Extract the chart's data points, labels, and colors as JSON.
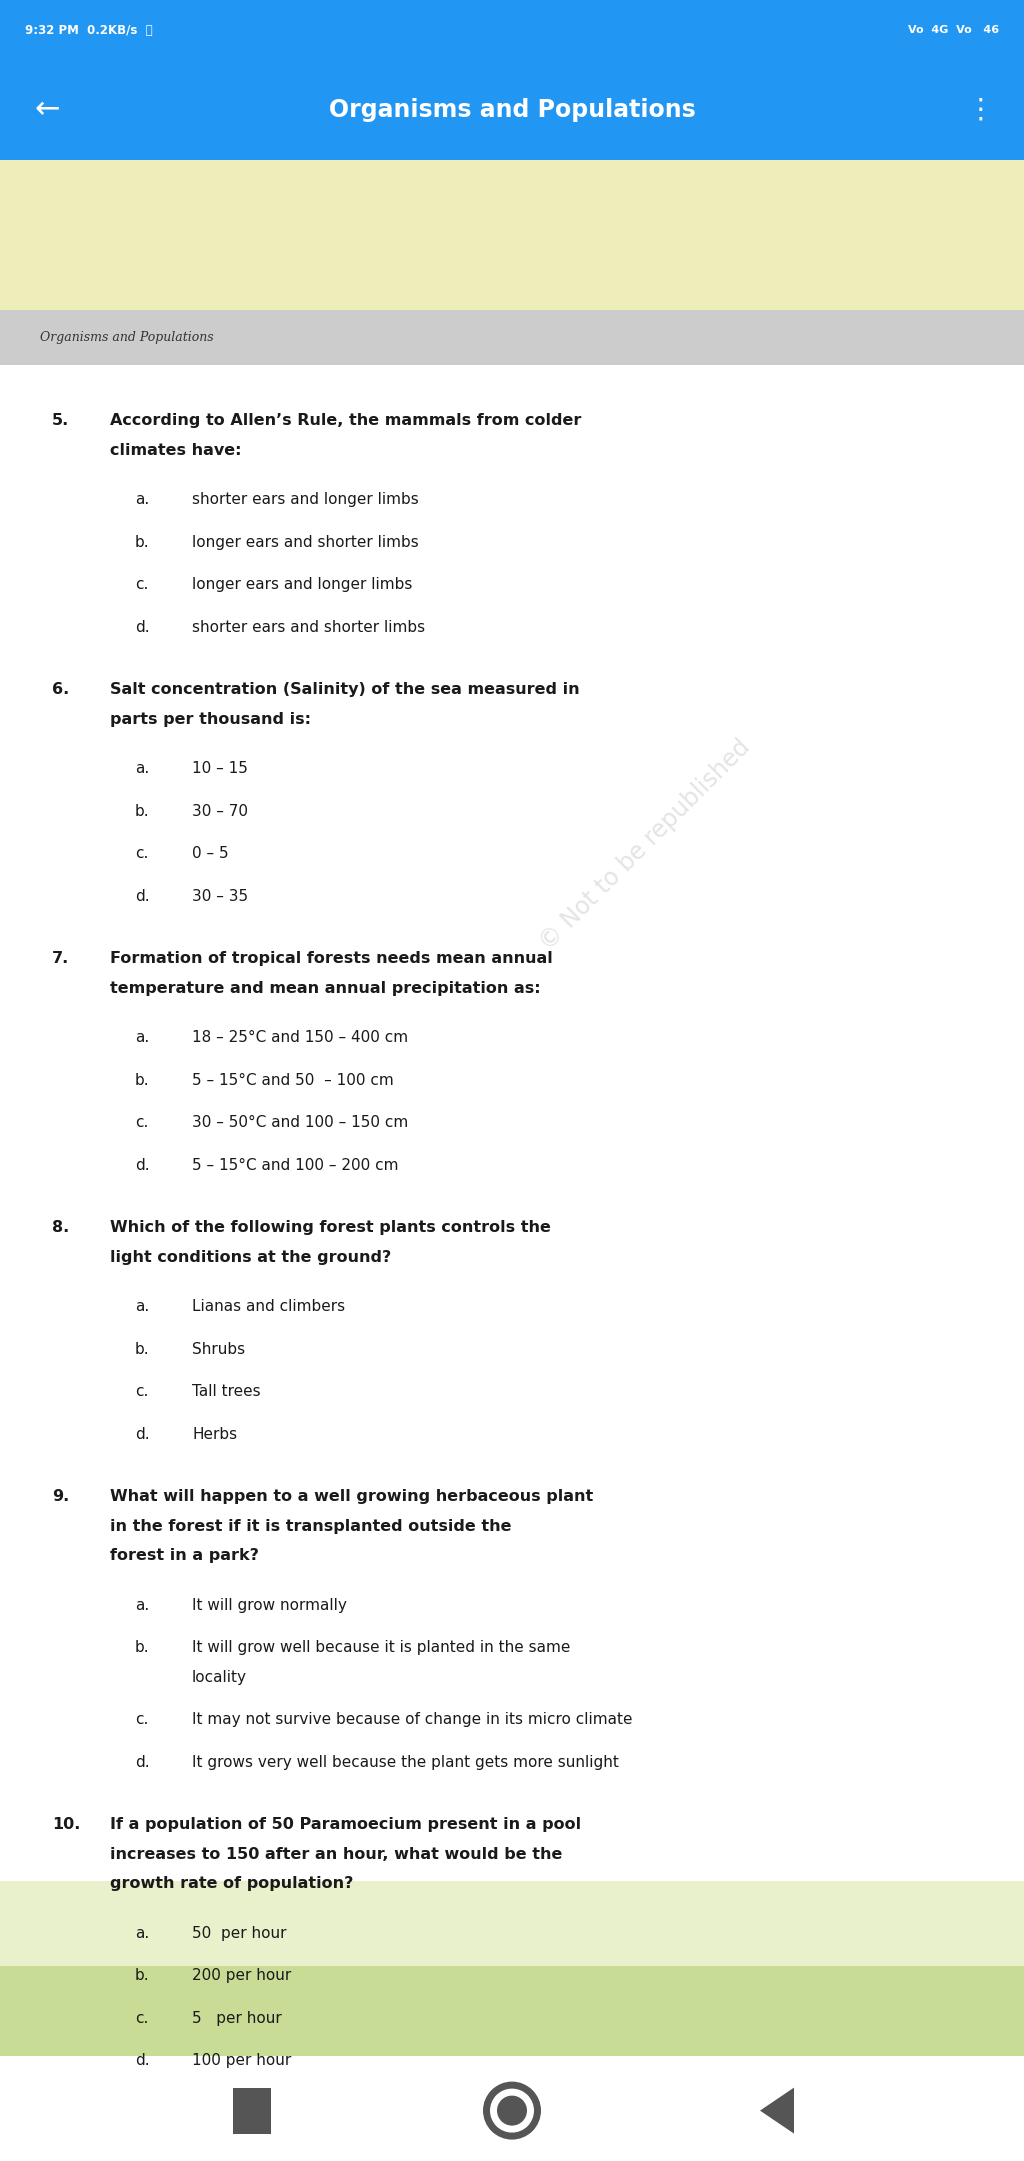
{
  "status_bar_bg": "#2196F3",
  "nav_bar_bg": "#2196F3",
  "nav_bar_title": "Organisms and Populations",
  "yellow_banner_bg": "#EEEEBB",
  "section_bar_bg": "#CCCCCC",
  "section_bar_text": "Organisms and Populations",
  "content_bg": "#FFFFFF",
  "bottom_bar_bg": "#C8DC96",
  "bottom_bar_light": "#E8F0CC",
  "bottom_nav_bg": "#FFFFFF",
  "watermark_color": "#BBBBBB",
  "questions": [
    {
      "num": "5.",
      "text": "According to Allen’s Rule, the mammals from colder climates have:",
      "options": [
        {
          "label": "a.",
          "text": "shorter ears and longer limbs"
        },
        {
          "label": "b.",
          "text": "longer ears and shorter limbs"
        },
        {
          "label": "c.",
          "text": "longer ears and longer limbs"
        },
        {
          "label": "d.",
          "text": "shorter ears and shorter limbs"
        }
      ]
    },
    {
      "num": "6.",
      "text": "Salt concentration (Salinity) of the sea measured in parts per thousand is:",
      "options": [
        {
          "label": "a.",
          "text": "10 – 15"
        },
        {
          "label": "b.",
          "text": "30 – 70"
        },
        {
          "label": "c.",
          "text": "0 – 5"
        },
        {
          "label": "d.",
          "text": "30 – 35"
        }
      ]
    },
    {
      "num": "7.",
      "text": "Formation of tropical forests needs mean annual temperature and mean annual precipitation as:",
      "options": [
        {
          "label": "a.",
          "text": "18 – 25°C and 150 – 400 cm"
        },
        {
          "label": "b.",
          "text": "5 – 15°C and 50  – 100 cm"
        },
        {
          "label": "c.",
          "text": "30 – 50°C and 100 – 150 cm"
        },
        {
          "label": "d.",
          "text": "5 – 15°C and 100 – 200 cm"
        }
      ]
    },
    {
      "num": "8.",
      "text": "Which of the following forest plants controls the light conditions at the ground?",
      "options": [
        {
          "label": "a.",
          "text": "Lianas and climbers"
        },
        {
          "label": "b.",
          "text": "Shrubs"
        },
        {
          "label": "c.",
          "text": "Tall trees"
        },
        {
          "label": "d.",
          "text": "Herbs"
        }
      ]
    },
    {
      "num": "9.",
      "text": "What will happen to a well growing herbaceous plant in the forest if it is transplanted outside the forest in a park?",
      "options": [
        {
          "label": "a.",
          "text": "It will grow normally"
        },
        {
          "label": "b.",
          "text": "It will grow well because it is planted in the same locality"
        },
        {
          "label": "c.",
          "text": "It may not survive because of change in its micro climate"
        },
        {
          "label": "d.",
          "text": "It grows very well because the plant gets more sunlight"
        }
      ]
    },
    {
      "num": "10.",
      "text": "If a population of 50 Paramoecium present in a pool increases to 150 after an hour, what would be the growth rate of population?",
      "options": [
        {
          "label": "a.",
          "text": "50  per hour"
        },
        {
          "label": "b.",
          "text": "200 per hour"
        },
        {
          "label": "c.",
          "text": "5   per hour"
        },
        {
          "label": "d.",
          "text": "100 per hour"
        }
      ]
    }
  ],
  "watermark_text": "© Not to be republished",
  "figsize": [
    10.24,
    21.61
  ],
  "dpi": 100
}
